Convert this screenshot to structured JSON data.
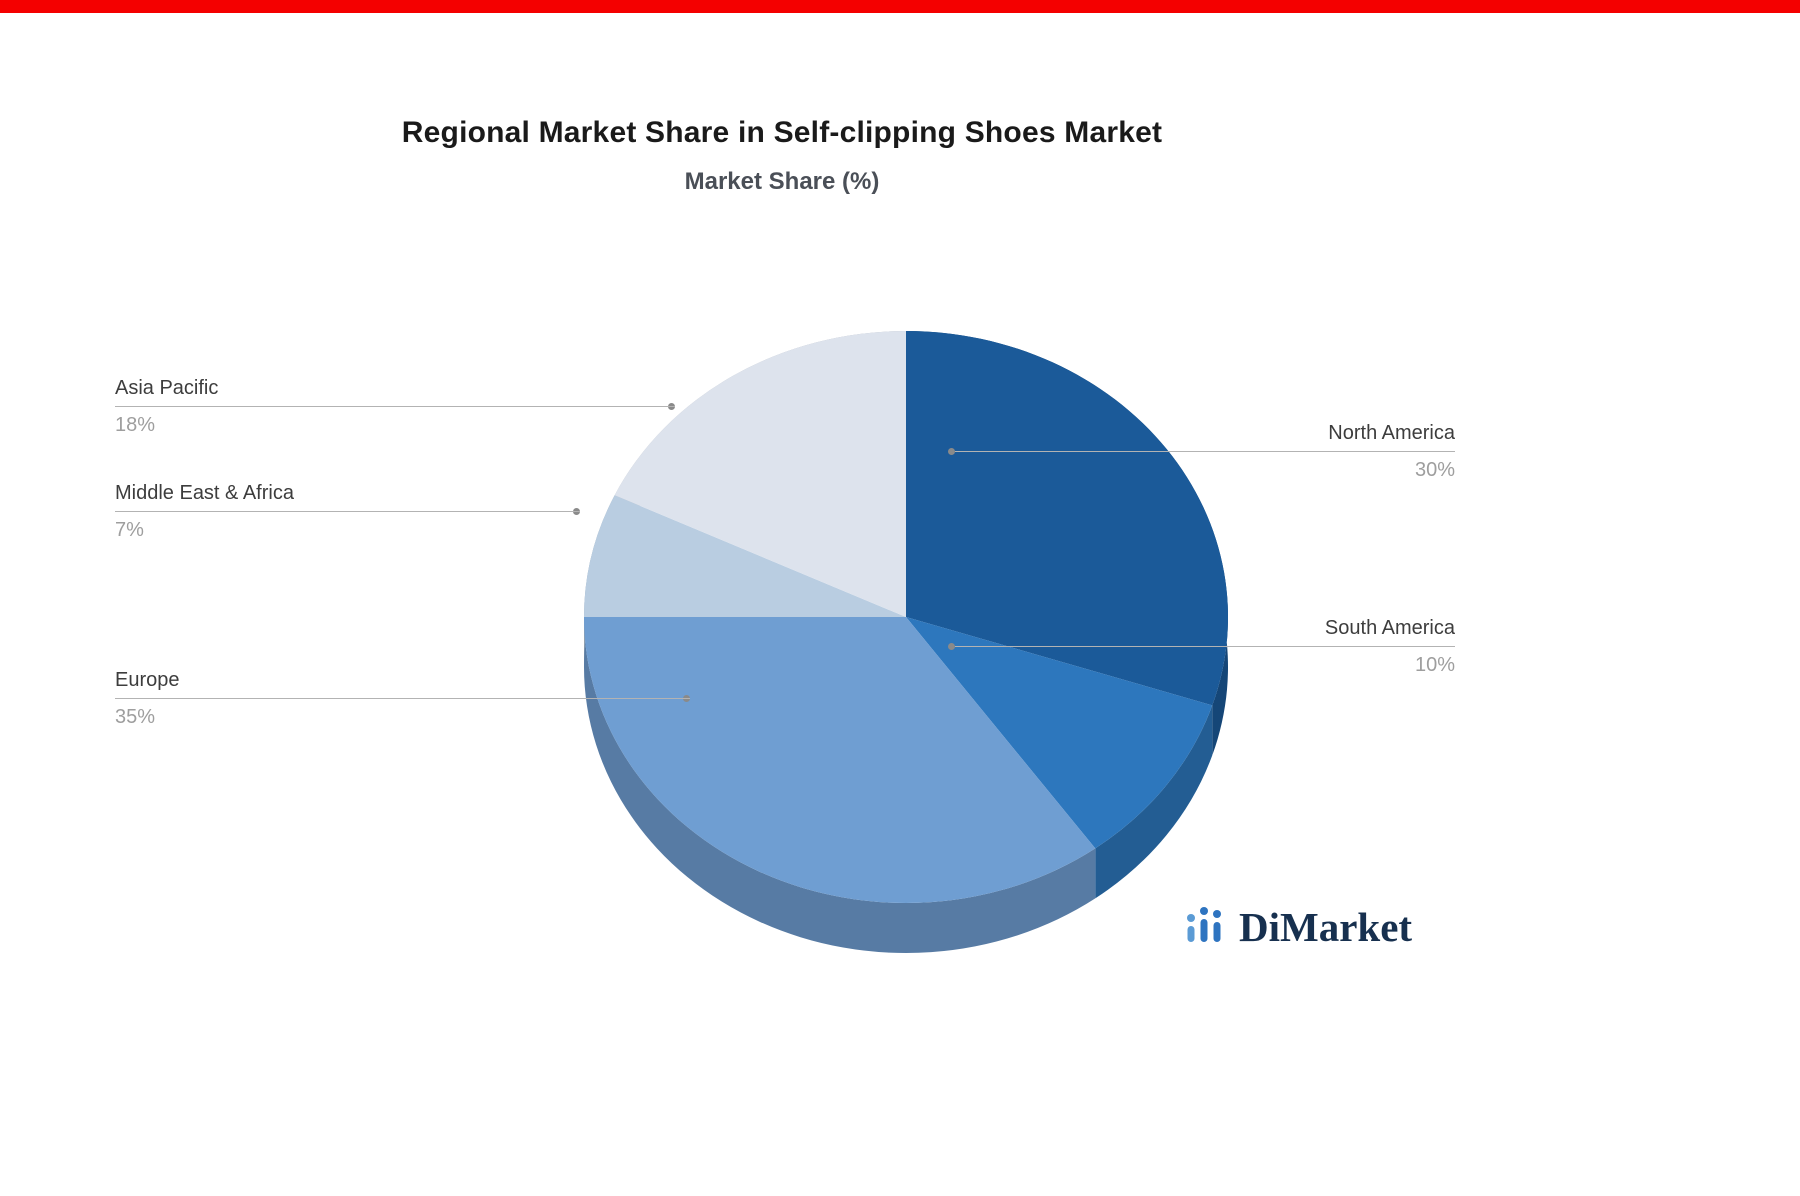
{
  "page": {
    "top_bar_color": "#f40000"
  },
  "chart_data": {
    "type": "pie",
    "title": "Regional Market Share in Self-clipping Shoes Market",
    "subtitle": "Market Share (%)",
    "categories": [
      "North America",
      "South America",
      "Europe",
      "Middle East & Africa",
      "Asia Pacific"
    ],
    "values": [
      30,
      10,
      35,
      7,
      18
    ],
    "unit": "%",
    "colors": [
      "#1b5a99",
      "#2d77bd",
      "#6f9ed2",
      "#b9cde1",
      "#dde3ed"
    ],
    "start_angle_deg": 0,
    "direction": "clockwise",
    "style_3d": true,
    "legend_position": "none",
    "callouts": [
      {
        "label": "North America",
        "value": "30%",
        "side": "right"
      },
      {
        "label": "South America",
        "value": "10%",
        "side": "right"
      },
      {
        "label": "Asia Pacific",
        "value": "18%",
        "side": "left"
      },
      {
        "label": "Middle East & Africa",
        "value": "7%",
        "side": "left"
      },
      {
        "label": "Europe",
        "value": "35%",
        "side": "left"
      }
    ]
  },
  "brand": {
    "name": "DiMarket",
    "accent_color": "#2e74c0"
  }
}
